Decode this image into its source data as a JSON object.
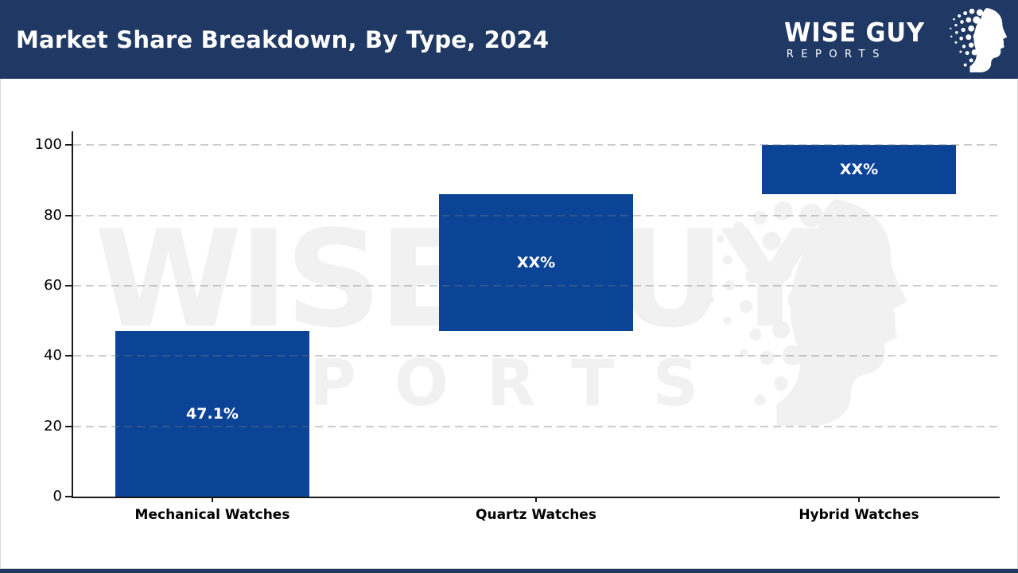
{
  "header": {
    "title": "Market Share Breakdown, By Type, 2024",
    "logo": {
      "line1": "WISE GUY",
      "line2": "REPORTS"
    }
  },
  "watermark": {
    "line1": "WISE GUY",
    "line2": "REPORTS"
  },
  "colors": {
    "header_bg": "#1f3864",
    "bar": "#0b4397",
    "grid": "#c9c9c9",
    "axis": "#1a1a1a",
    "watermark": "#f1f1f1",
    "bar_label_text": "#ffffff"
  },
  "chart_data": {
    "type": "bar",
    "subtype": "waterfall-cumulative",
    "title": "Market Share Breakdown, By Type, 2024",
    "categories": [
      "Mechanical Watches",
      "Quartz Watches",
      "Hybrid Watches"
    ],
    "bars": [
      {
        "category": "Mechanical Watches",
        "label": "47.1%",
        "start": 0,
        "end": 47.1
      },
      {
        "category": "Quartz Watches",
        "label": "XX%",
        "start": 47.1,
        "end": 86.0
      },
      {
        "category": "Hybrid Watches",
        "label": "XX%",
        "start": 86.0,
        "end": 100.0
      }
    ],
    "values_visible": [
      "47.1%",
      "XX%",
      "XX%"
    ],
    "xlabel": "",
    "ylabel": "",
    "yticks": [
      0,
      20,
      40,
      60,
      80,
      100
    ],
    "ylim": [
      0,
      104.4
    ],
    "grid": "horizontal dashed, drawn over bars",
    "legend": "none",
    "bar_color": "#0b4397"
  }
}
